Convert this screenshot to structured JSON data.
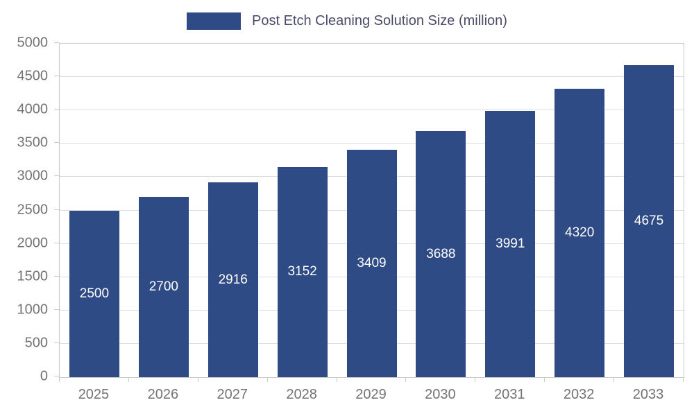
{
  "legend": {
    "label": "Post Etch Cleaning Solution Size (million)",
    "swatch_color": "#2f4b85"
  },
  "chart_data": {
    "type": "bar",
    "title": "Post Etch Cleaning Solution Size (million)",
    "categories": [
      "2025",
      "2026",
      "2027",
      "2028",
      "2029",
      "2030",
      "2031",
      "2032",
      "2033"
    ],
    "values": [
      2500,
      2700,
      2916,
      3152,
      3409,
      3688,
      3991,
      4320,
      4675
    ],
    "xlabel": "",
    "ylabel": "",
    "ylim": [
      0,
      5000
    ],
    "yticks": [
      0,
      500,
      1000,
      1500,
      2000,
      2500,
      3000,
      3500,
      4000,
      4500,
      5000
    ],
    "grid": true,
    "legend_position": "top",
    "bar_color": "#2f4b85",
    "value_label_color": "#ffffff",
    "axis_label_color": "#737373",
    "gridline_color": "#dddddd",
    "border_color": "#c9c9c9"
  }
}
